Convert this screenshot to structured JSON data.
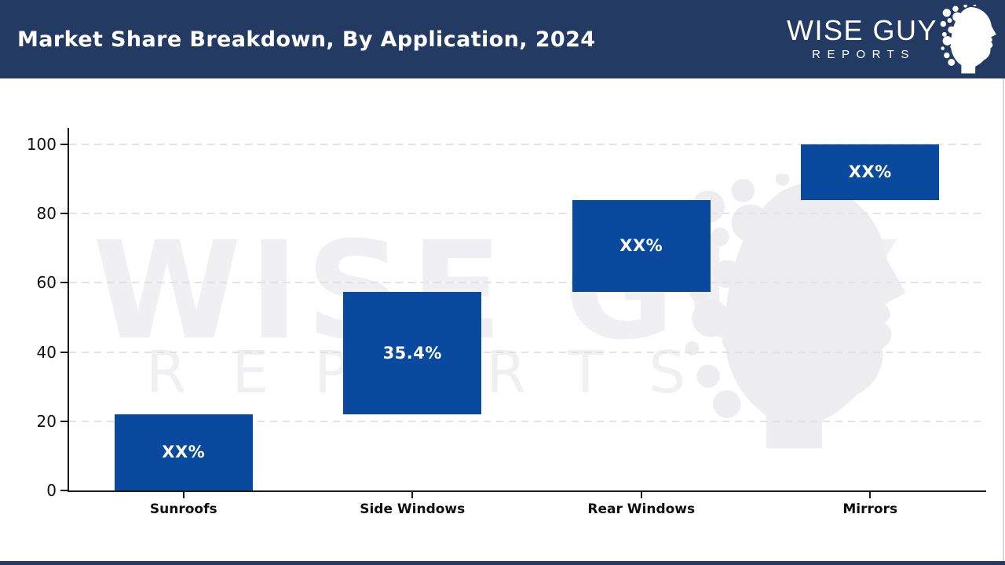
{
  "header": {
    "title": "Market Share Breakdown, By Application, 2024",
    "logo": {
      "wordmark": "WISE GUY",
      "sub": "REPORTS",
      "icon": "dot-head-icon"
    }
  },
  "watermark": {
    "wordmark": "WISE GUY",
    "sub": "REPORTS",
    "icon": "dot-head-icon"
  },
  "colors": {
    "header_bg": "#233a62",
    "footer_bg": "#233a62",
    "bar_fill": "#0a4a9e",
    "bar_label_text": "#ffffff",
    "grid_line": "#e2e2e4",
    "axis_line": "#1a1a1a",
    "tick_text": "#111111",
    "watermark": "#f0f0f3"
  },
  "chart_data": {
    "type": "bar",
    "subtype": "waterfall",
    "title": "Market Share Breakdown, By Application, 2024",
    "categories": [
      "Sunroofs",
      "Side Windows",
      "Rear Windows",
      "Mirrors"
    ],
    "series": [
      {
        "name": "Market Share (%)",
        "segments": [
          {
            "category": "Sunroofs",
            "start": 0,
            "end": 22,
            "value_estimate": 22,
            "label": "XX%"
          },
          {
            "category": "Side Windows",
            "start": 22,
            "end": 57.4,
            "value_estimate": 35.4,
            "label": "35.4%"
          },
          {
            "category": "Rear Windows",
            "start": 57.4,
            "end": 84,
            "value_estimate": 26.6,
            "label": "XX%"
          },
          {
            "category": "Mirrors",
            "start": 84,
            "end": 100,
            "value_estimate": 16,
            "label": "XX%"
          }
        ]
      }
    ],
    "xlabel": "",
    "ylabel": "",
    "ylim": [
      0,
      105
    ],
    "yticks": [
      0,
      20,
      40,
      60,
      80,
      100
    ],
    "grid": "horizontal-dashed",
    "legend": "none"
  }
}
